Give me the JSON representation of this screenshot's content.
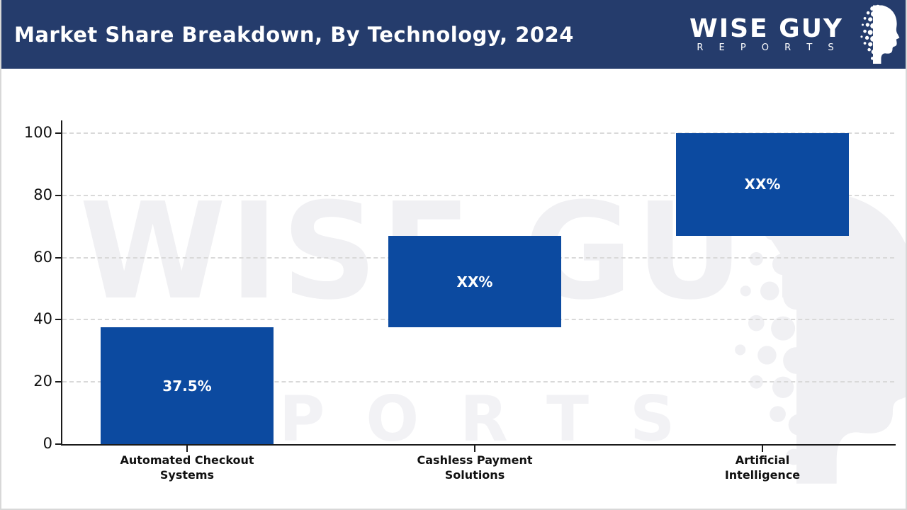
{
  "header": {
    "title": "Market Share Breakdown, By Technology, 2024",
    "background_color": "#253c6c",
    "logo": {
      "wordmark": "WISE GUY",
      "subtitle": "R E P O R T S"
    }
  },
  "watermark": {
    "line1": "WISE GUY",
    "line2": "REPORTS"
  },
  "chart_data": {
    "type": "bar",
    "subtype": "stacked-waterfall",
    "title": "Market Share Breakdown, By Technology, 2024",
    "xlabel": "",
    "ylabel": "",
    "ylim": [
      0,
      100
    ],
    "yticks": [
      0,
      20,
      40,
      60,
      80,
      100
    ],
    "grid": "horizontal-dashed",
    "legend": "none",
    "bar_color": "#0c4aa0",
    "bar_label_color": "#ffffff",
    "segments": [
      {
        "category_lines": [
          "Automated Checkout",
          "Systems"
        ],
        "start": 0,
        "end": 37.5,
        "label": "37.5%"
      },
      {
        "category_lines": [
          "Cashless Payment",
          "Solutions"
        ],
        "start": 37.5,
        "end": 67,
        "label": "XX%"
      },
      {
        "category_lines": [
          "Artificial",
          "Intelligence"
        ],
        "start": 67,
        "end": 100,
        "label": "XX%"
      }
    ]
  }
}
